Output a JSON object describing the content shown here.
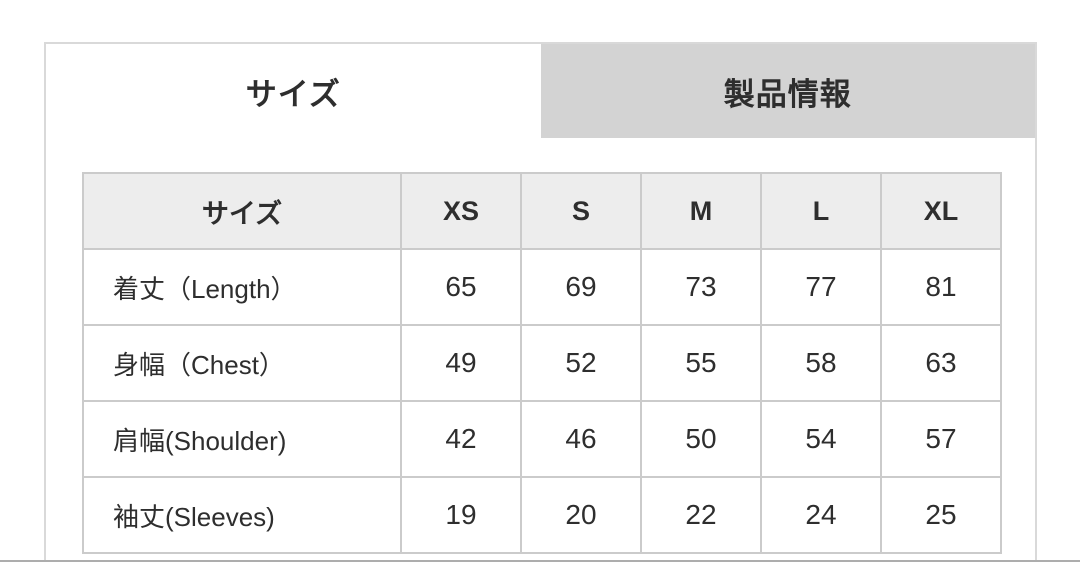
{
  "tabs": {
    "size_tab": {
      "label": "サイズ",
      "active": true
    },
    "product_info_tab": {
      "label": "製品情報",
      "active": false
    }
  },
  "size_table": {
    "header": {
      "label_col": "サイズ",
      "xs": "XS",
      "s": "S",
      "m": "M",
      "l": "L",
      "xl": "XL"
    },
    "rows": [
      {
        "label": "着丈（Length）",
        "values": [
          "65",
          "69",
          "73",
          "77",
          "81"
        ]
      },
      {
        "label": "身幅（Chest）",
        "values": [
          "49",
          "52",
          "55",
          "58",
          "63"
        ]
      },
      {
        "label": "肩幅(Shoulder)",
        "values": [
          "42",
          "46",
          "50",
          "54",
          "57"
        ]
      },
      {
        "label": "袖丈(Sleeves)",
        "values": [
          "19",
          "20",
          "22",
          "24",
          "25"
        ]
      }
    ]
  },
  "colors": {
    "background": "#ffffff",
    "inactive_tab_bg": "#d3d3d3",
    "table_header_bg": "#ededed",
    "table_border": "#cbcbcb",
    "panel_border": "#d9d9d9",
    "text": "#2e2e2e",
    "bottom_line": "#adadad"
  }
}
